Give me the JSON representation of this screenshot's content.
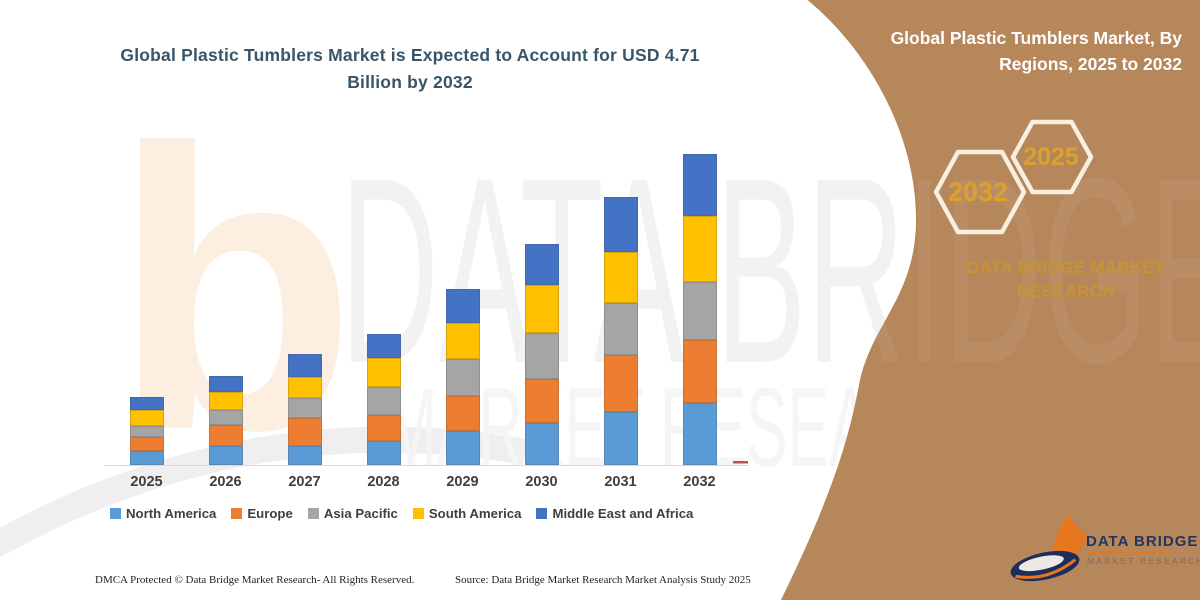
{
  "main_title": "Global Plastic Tumblers Market is Expected to Account for USD 4.71 Billion by 2032",
  "chart_data": {
    "type": "bar",
    "stacked": true,
    "unit": "USD Billion",
    "values_estimated_from_pixels": true,
    "categories": [
      "2025",
      "2026",
      "2027",
      "2028",
      "2029",
      "2030",
      "2031",
      "2032"
    ],
    "series": [
      {
        "name": "North America",
        "color": "#5B9BD5",
        "values": [
          0.21,
          0.28,
          0.29,
          0.36,
          0.51,
          0.63,
          0.8,
          0.94
        ]
      },
      {
        "name": "Europe",
        "color": "#ED7D31",
        "values": [
          0.21,
          0.31,
          0.42,
          0.39,
          0.53,
          0.66,
          0.86,
          0.95
        ]
      },
      {
        "name": "Asia Pacific",
        "color": "#A5A5A5",
        "values": [
          0.17,
          0.22,
          0.3,
          0.42,
          0.56,
          0.69,
          0.79,
          0.88
        ]
      },
      {
        "name": "South America",
        "color": "#FFC000",
        "values": [
          0.24,
          0.27,
          0.31,
          0.44,
          0.54,
          0.72,
          0.77,
          1.0
        ]
      },
      {
        "name": "Middle East and Africa",
        "color": "#4472C4",
        "values": [
          0.2,
          0.24,
          0.35,
          0.36,
          0.51,
          0.62,
          0.83,
          0.94
        ]
      }
    ],
    "totals": [
      1.03,
      1.32,
      1.67,
      1.97,
      2.65,
      3.32,
      4.05,
      4.71
    ],
    "highlight_total_2032": 4.71,
    "legend_position": "bottom",
    "grid": false,
    "y_axis_visible": false
  },
  "right_panel": {
    "heading": "Global Plastic Tumblers Market, By Regions, 2025 to 2032",
    "hexagons": [
      {
        "label": "2032"
      },
      {
        "label": "2025"
      }
    ],
    "brand_text": "DATA BRIDGE MARKET RESEARCH",
    "colors": {
      "panel_brown": "#b7875c",
      "hexagon_stroke": "#f7f0e0",
      "year_gold": "#dba12f",
      "brand_gold": "#c79434"
    }
  },
  "logo": {
    "name": "DATA BRIDGE",
    "subtitle": "MARKET RESEARCH"
  },
  "watermarks": {
    "logo_letter": "b",
    "line1": "DATA BRIDGE",
    "line2": "MARKET RESEARCH"
  },
  "footer": {
    "left": "DMCA Protected © Data Bridge Market Research-  All Rights Reserved.",
    "right": "Source: Data Bridge Market Research Market Analysis Study 2025"
  }
}
